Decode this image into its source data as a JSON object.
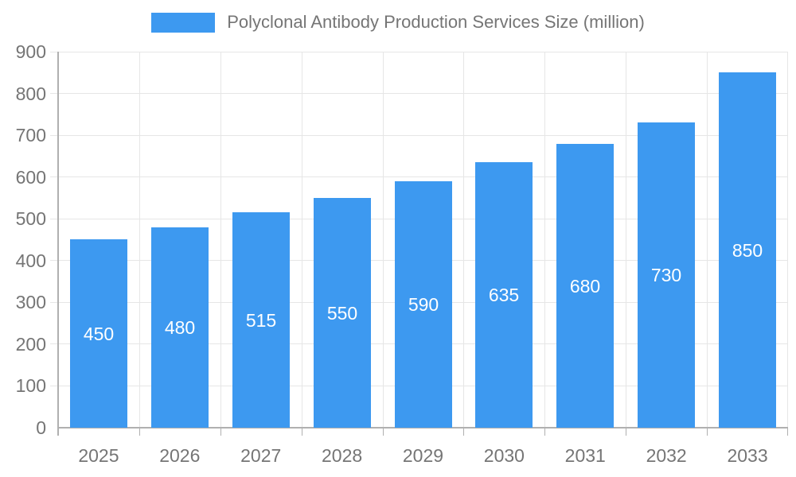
{
  "legend": {
    "label": "Polyclonal Antibody Production Services Size (million)",
    "swatch_color": "#3D99F0"
  },
  "chart_data": {
    "type": "bar",
    "title": "Polyclonal Antibody Production Services Size (million)",
    "series_name": "Polyclonal Antibody Production Services Size (million)",
    "categories": [
      "2025",
      "2026",
      "2027",
      "2028",
      "2029",
      "2030",
      "2031",
      "2032",
      "2033"
    ],
    "values": [
      450,
      480,
      515,
      550,
      590,
      635,
      680,
      730,
      850
    ],
    "xlabel": "",
    "ylabel": "",
    "ylim": [
      0,
      900
    ],
    "ytick_interval": 100,
    "yticks": [
      0,
      100,
      200,
      300,
      400,
      500,
      600,
      700,
      800,
      900
    ],
    "grid": true,
    "legend_position": "top",
    "value_labels_shown": true
  },
  "colors": {
    "bar": "#3D99F0",
    "grid": "#e6e6e6",
    "axis": "#b0b0b0",
    "tick_text": "#757575",
    "value_label": "#ffffff",
    "background": "#ffffff"
  }
}
